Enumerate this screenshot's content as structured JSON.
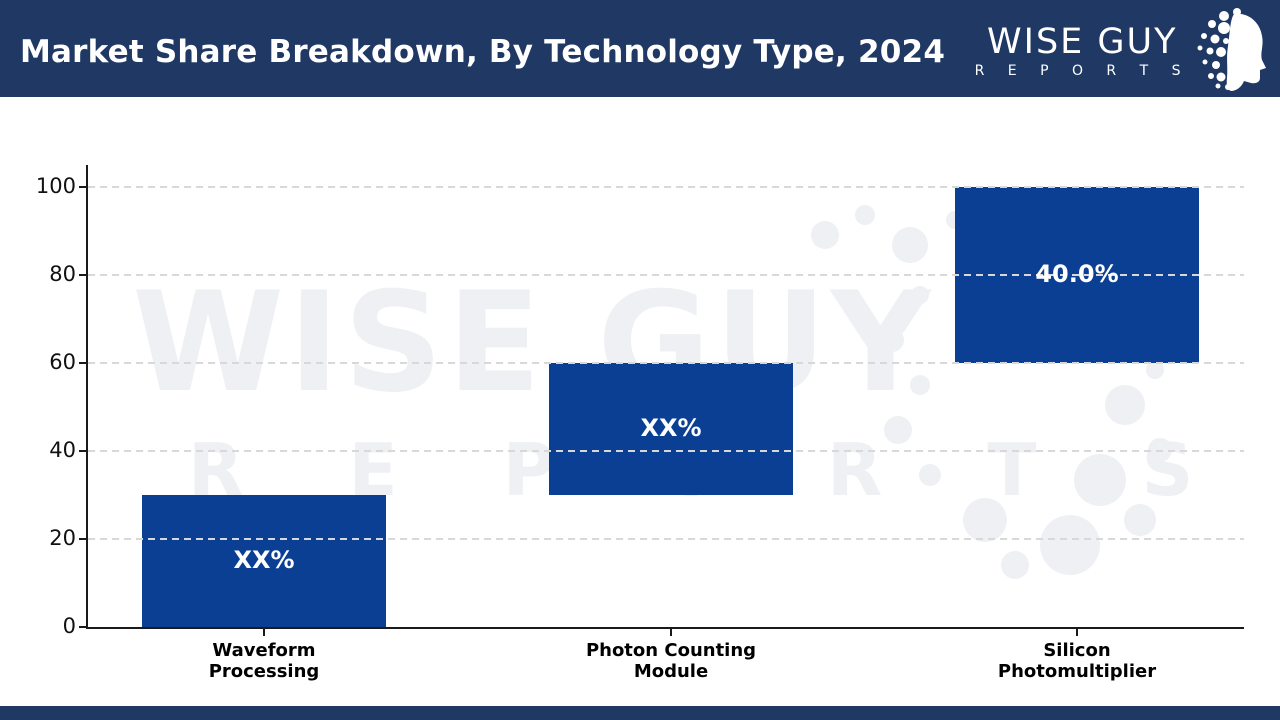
{
  "header": {
    "title": "Market Share Breakdown, By Technology Type, 2024",
    "bg_color": "#1f3864",
    "logo": {
      "line1": "WISE GUY",
      "line2": "R E P O R T S"
    }
  },
  "watermark": {
    "line1": "WISE GUY",
    "line2": "R E P O R T S"
  },
  "chart_data": {
    "type": "bar",
    "variant": "floating-waterfall",
    "title": "Market Share Breakdown, By Technology Type, 2024",
    "categories": [
      "Waveform\nProcessing",
      "Photon Counting\nModule",
      "Silicon\nPhotomultiplier"
    ],
    "segments": [
      {
        "category": "Waveform Processing",
        "start": 0,
        "end": 30,
        "label": "XX%"
      },
      {
        "category": "Photon Counting Module",
        "start": 30,
        "end": 60,
        "label": "XX%"
      },
      {
        "category": "Silicon Photomultiplier",
        "start": 60,
        "end": 100,
        "label": "40.0%"
      }
    ],
    "y_ticks": [
      0,
      20,
      40,
      60,
      80,
      100
    ],
    "ylim": [
      0,
      105
    ],
    "xlabel": "",
    "ylabel": "",
    "grid": "horizontal-dashed",
    "legend": "none",
    "bar_color": "#0a3f94",
    "bar_label_color": "#ffffff"
  },
  "footer": {
    "bg_color": "#1f3864"
  }
}
